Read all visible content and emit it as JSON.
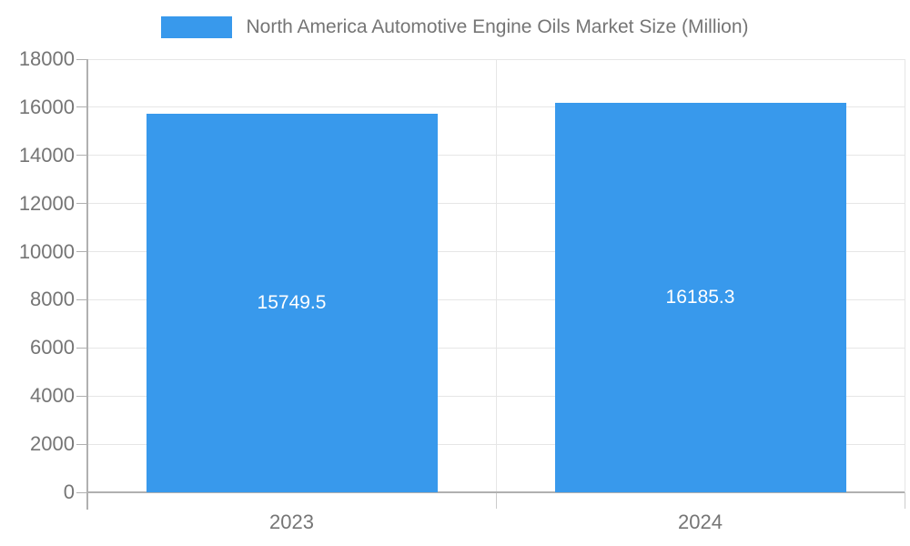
{
  "legend": {
    "label": "North America Automotive Engine Oils Market Size (Million)"
  },
  "chart_data": {
    "type": "bar",
    "title": "North America Automotive Engine Oils Market Size (Million)",
    "categories": [
      "2023",
      "2024"
    ],
    "series": [
      {
        "name": "North America Automotive Engine Oils Market Size (Million)",
        "values": [
          15749.5,
          16185.3
        ]
      }
    ],
    "value_labels": [
      "15749.5",
      "16185.3"
    ],
    "ytick_labels": [
      "0",
      "2000",
      "4000",
      "6000",
      "8000",
      "10000",
      "12000",
      "14000",
      "16000",
      "18000"
    ],
    "yticks": [
      0,
      2000,
      4000,
      6000,
      8000,
      10000,
      12000,
      14000,
      16000,
      18000
    ],
    "ylim": [
      0,
      18000
    ],
    "xlabel": "",
    "ylabel": "",
    "grid": true,
    "legend_position": "top-center",
    "colors": {
      "bar": "#3899ec",
      "bar_label": "#ffffff",
      "axis_text": "#757575",
      "axis_line": "#b0b0b0",
      "gridline": "#e6e6e6",
      "boundary_tick": "#cccccc",
      "background": "#ffffff"
    }
  }
}
